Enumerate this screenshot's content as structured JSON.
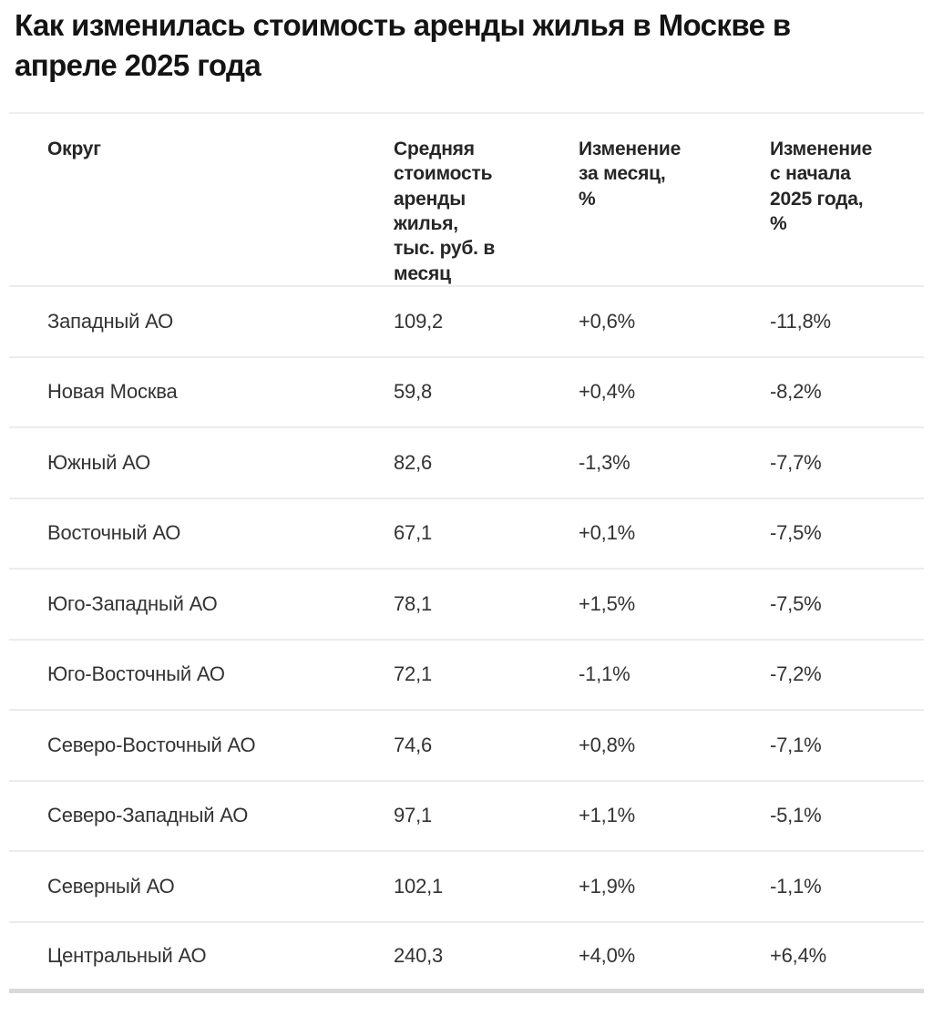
{
  "title": "Как изменилась стоимость аренды жилья в Москве в апреле 2025 года",
  "table": {
    "columns": [
      "Округ",
      "Средняя\nстоимость\nаренды\nжилья,\nтыс. руб. в\nмесяц",
      "Изменение\nза месяц,\n%",
      "Изменение\nс начала\n2025 года,\n%"
    ],
    "rows": [
      [
        "Западный АО",
        "109,2",
        "+0,6%",
        "-11,8%"
      ],
      [
        "Новая Москва",
        "59,8",
        "+0,4%",
        "-8,2%"
      ],
      [
        "Южный АО",
        "82,6",
        "-1,3%",
        "-7,7%"
      ],
      [
        "Восточный АО",
        "67,1",
        "+0,1%",
        "-7,5%"
      ],
      [
        "Юго-Западный АО",
        "78,1",
        "+1,5%",
        "-7,5%"
      ],
      [
        "Юго-Восточный АО",
        "72,1",
        "-1,1%",
        "-7,2%"
      ],
      [
        "Северо-Восточный АО",
        "74,6",
        "+0,8%",
        "-7,1%"
      ],
      [
        "Северо-Западный АО",
        "97,1",
        "+1,1%",
        "-5,1%"
      ],
      [
        "Северный АО",
        "102,1",
        "+1,9%",
        "-1,1%"
      ],
      [
        "Центральный АО",
        "240,3",
        "+4,0%",
        "+6,4%"
      ]
    ]
  },
  "colors": {
    "background": "#ffffff",
    "title_text": "#141414",
    "header_text": "#262626",
    "body_text": "#333333",
    "row_divider": "#ececec",
    "bottom_border": "#d9d9d9"
  }
}
